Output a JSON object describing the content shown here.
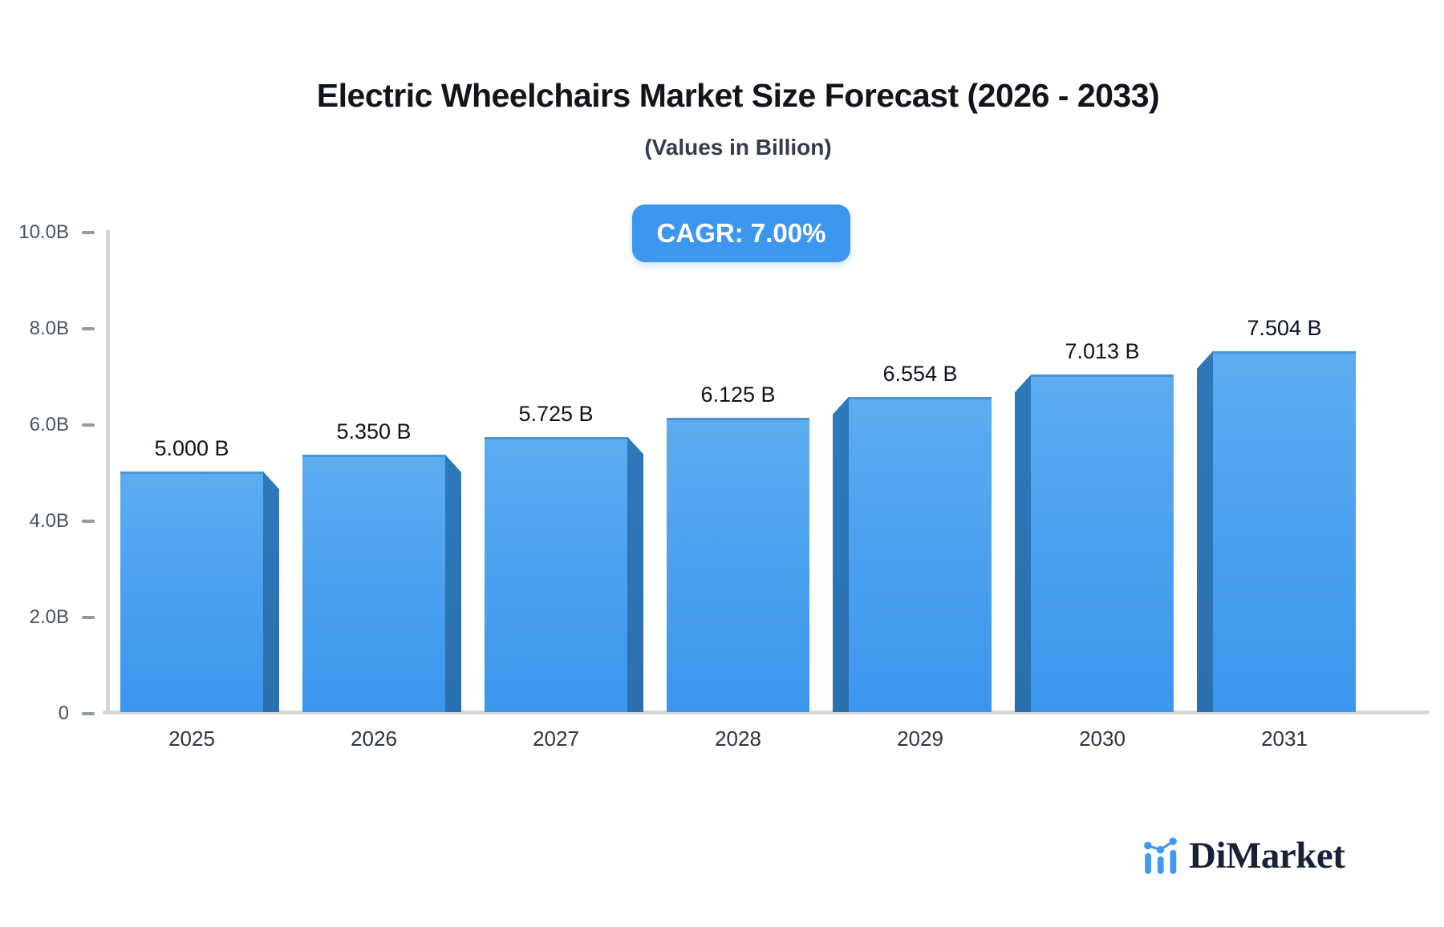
{
  "header": {
    "title": "Electric Wheelchairs Market Size Forecast (2026 - 2033)",
    "subtitle": "(Values in Billion)",
    "cagr_badge": "CAGR: 7.00%"
  },
  "chart_data": {
    "type": "bar",
    "title": "Electric Wheelchairs Market Size Forecast (2026 - 2033)",
    "subtitle": "(Values in Billion)",
    "cagr": "7.00%",
    "categories": [
      "2025",
      "2026",
      "2027",
      "2028",
      "2029",
      "2030",
      "2031"
    ],
    "values": [
      5.0,
      5.35,
      5.725,
      6.125,
      6.554,
      7.013,
      7.504
    ],
    "value_labels": [
      "5.000 B",
      "5.350 B",
      "5.725 B",
      "6.125 B",
      "6.554 B",
      "7.013 B",
      "7.504 B"
    ],
    "xlabel": "",
    "ylabel": "",
    "ylim": [
      0,
      10
    ],
    "yticks": [
      {
        "value": 10,
        "label": "10.0B"
      },
      {
        "value": 8,
        "label": "8.0B"
      },
      {
        "value": 6,
        "label": "6.0B"
      },
      {
        "value": 4,
        "label": "4.0B"
      },
      {
        "value": 2,
        "label": "2.0B"
      },
      {
        "value": 0,
        "label": "0"
      }
    ],
    "grid": false,
    "legend": false,
    "bar_style": "3d-perspective"
  },
  "footer": {
    "brand": "DiMarket"
  },
  "colors": {
    "background": "#ffffff",
    "title": "#10141c",
    "subtitle": "#323c4e",
    "badge-bg": "#3e97ef",
    "badge-text": "#ffffff",
    "bar-face-top": "#5cacf0",
    "bar-face-bottom": "#3b96ee",
    "bar-side": "#2e78bb",
    "axis-line": "#d3d6db",
    "tick-dash": "#949aa5",
    "axis-label": "#49525f",
    "year-label": "#2c3543",
    "value-label": "#0d1420",
    "brand-navy": "#1a2137",
    "brand-blue": "#3f9af2"
  }
}
